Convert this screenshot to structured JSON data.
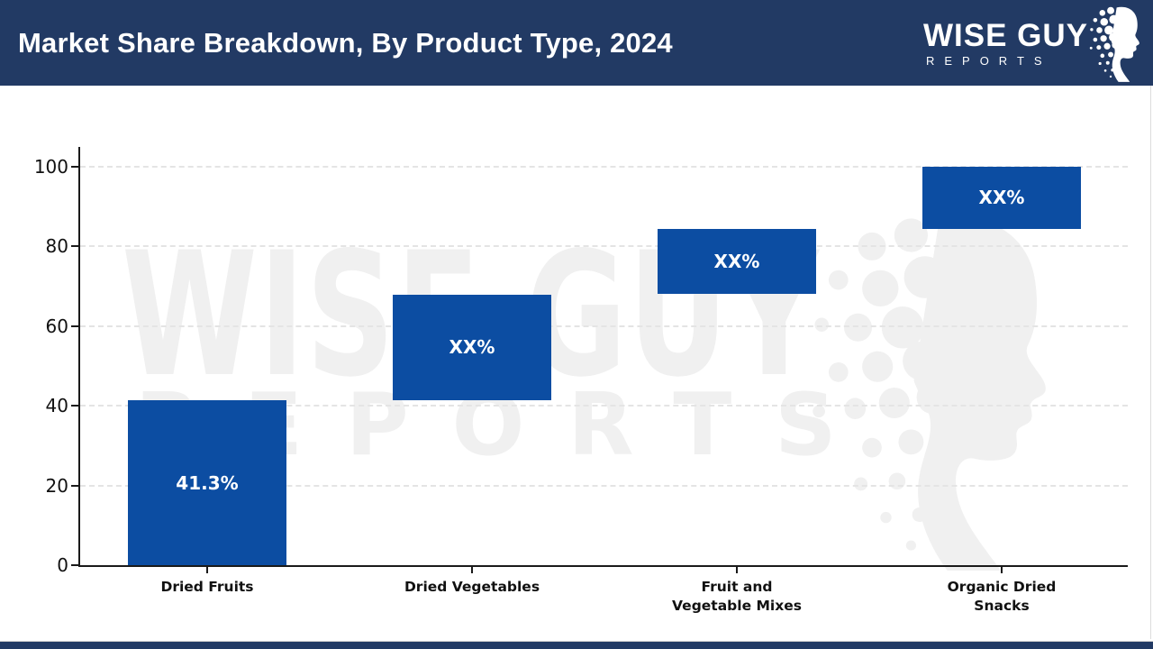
{
  "header": {
    "title": "Market Share Breakdown, By Product Type, 2024",
    "logo_line1": "WISE GUY",
    "logo_line2": "REPORTS"
  },
  "watermark": {
    "line1": "WISE GUY",
    "line2": "REPORTS"
  },
  "colors": {
    "header_navy": "#223a64",
    "bar_blue": "#0c4da2",
    "grid_gray": "#e4e4e4",
    "axis_dark": "#1a1a1a",
    "watermark_gray": "#f0f0f0",
    "value_label_white": "#ffffff"
  },
  "chart_data": {
    "type": "bar",
    "subtype": "waterfall",
    "title": "Market Share Breakdown, By Product Type, 2024",
    "categories": [
      "Dried Fruits",
      "Dried Vegetables",
      "Fruit and\nVegetable Mixes",
      "Organic Dried\nSnacks"
    ],
    "segments": [
      {
        "category": "Dried Fruits",
        "start": 0,
        "end": 41.3,
        "label": "41.3%"
      },
      {
        "category": "Dried Vegetables",
        "start": 41.3,
        "end": 68,
        "label": "XX%"
      },
      {
        "category": "Fruit and Vegetable Mixes",
        "start": 68,
        "end": 84.5,
        "label": "XX%"
      },
      {
        "category": "Organic Dried Snacks",
        "start": 84.5,
        "end": 100,
        "label": "XX%"
      }
    ],
    "xlabel": "",
    "ylabel": "",
    "yticks": [
      0,
      20,
      40,
      60,
      80,
      100
    ],
    "ylim": [
      0,
      105
    ],
    "grid": "horizontal-dashed",
    "legend": "none",
    "bar_color": "#0c4da2"
  }
}
